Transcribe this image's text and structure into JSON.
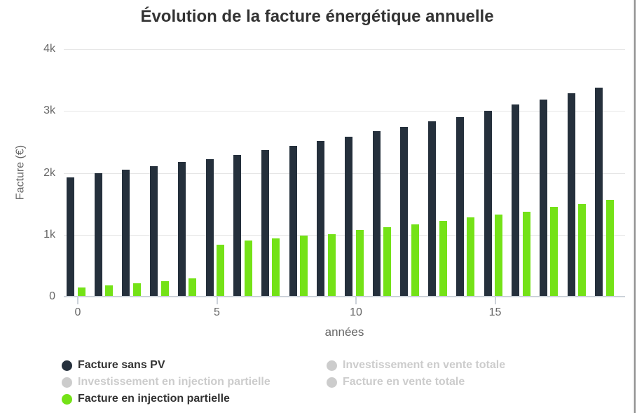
{
  "chart_data": {
    "type": "bar",
    "title": "Évolution de la facture énergétique annuelle",
    "xlabel": "années",
    "ylabel": "Facture (€)",
    "ylim": [
      0,
      4000
    ],
    "grid": true,
    "legend_position": "bottom",
    "categories": [
      0,
      1,
      2,
      3,
      4,
      5,
      6,
      7,
      8,
      9,
      10,
      11,
      12,
      13,
      14,
      15,
      16,
      17,
      18,
      19
    ],
    "xtick_labels": [
      "0",
      "5",
      "10",
      "15"
    ],
    "xtick_positions": [
      0,
      5,
      10,
      15
    ],
    "ytick_labels": [
      "0",
      "1k",
      "2k",
      "3k",
      "4k"
    ],
    "ytick_values": [
      0,
      1000,
      2000,
      3000,
      4000
    ],
    "series": [
      {
        "name": "Facture sans PV",
        "color": "#25303c",
        "visible": true,
        "values": [
          1910,
          1980,
          2040,
          2100,
          2160,
          2210,
          2280,
          2360,
          2430,
          2500,
          2570,
          2660,
          2730,
          2820,
          2890,
          2990,
          3090,
          3170,
          3270,
          3360
        ]
      },
      {
        "name": "Facture en injection partielle",
        "color": "#74e217",
        "visible": true,
        "values": [
          135,
          175,
          205,
          235,
          285,
          830,
          890,
          925,
          970,
          1000,
          1060,
          1110,
          1160,
          1215,
          1265,
          1320,
          1365,
          1440,
          1490,
          1555
        ]
      }
    ],
    "hidden_series": [
      "Investissement en injection partielle",
      "Investissement en vente totale",
      "Facture en vente totale"
    ]
  },
  "legend": {
    "inactive_color": "#cccccc",
    "active_text_color": "#333333",
    "items": [
      {
        "label": "Facture sans PV",
        "color": "#25303c",
        "active": true,
        "col": 0,
        "row": 0
      },
      {
        "label": "Investissement en vente totale",
        "color": "#cccccc",
        "active": false,
        "col": 1,
        "row": 0
      },
      {
        "label": "Investissement en injection partielle",
        "color": "#cccccc",
        "active": false,
        "col": 0,
        "row": 1
      },
      {
        "label": "Facture en vente totale",
        "color": "#cccccc",
        "active": false,
        "col": 1,
        "row": 1
      },
      {
        "label": "Facture en injection partielle",
        "color": "#74e217",
        "active": true,
        "col": 0,
        "row": 2
      }
    ]
  }
}
